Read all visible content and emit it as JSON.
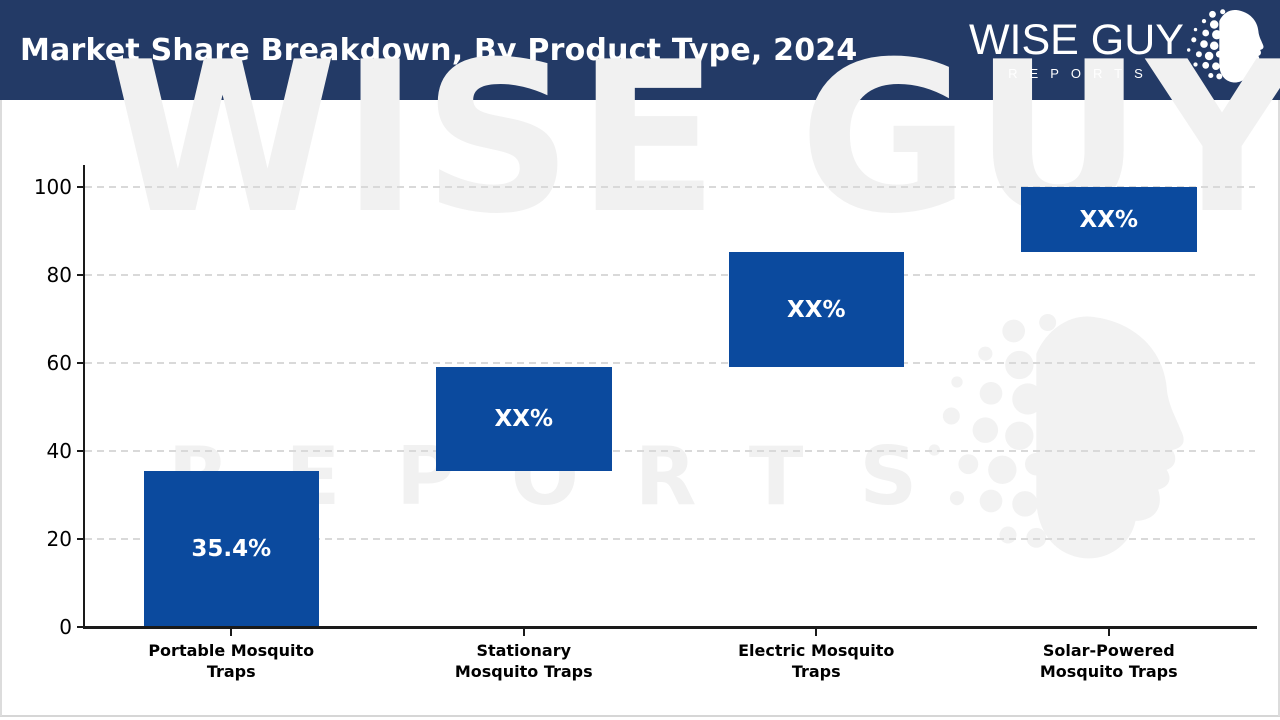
{
  "header": {
    "title": "Market Share Breakdown, By Product Type, 2024",
    "logo": {
      "brand": "WISE GUY",
      "sub": "REPORTS"
    }
  },
  "watermark": {
    "brand": "WISE GUY",
    "sub": "REPORTS"
  },
  "chart_data": {
    "type": "bar",
    "subtype": "waterfall",
    "title": "Market Share Breakdown, By Product Type, 2024",
    "categories": [
      [
        "Portable Mosquito",
        "Traps"
      ],
      [
        "Stationary",
        "Mosquito Traps"
      ],
      [
        "Electric Mosquito",
        "Traps"
      ],
      [
        "Solar-Powered",
        "Mosquito Traps"
      ]
    ],
    "segments": [
      {
        "category": "Portable Mosquito Traps",
        "start": 0,
        "end": 35.4,
        "label": "35.4%"
      },
      {
        "category": "Stationary Mosquito Traps",
        "start": 35.4,
        "end": 59.1,
        "label": "XX%"
      },
      {
        "category": "Electric Mosquito Traps",
        "start": 59.1,
        "end": 85.2,
        "label": "XX%"
      },
      {
        "category": "Solar-Powered Mosquito Traps",
        "start": 85.2,
        "end": 100,
        "label": "XX%"
      }
    ],
    "xlabel": "",
    "ylabel": "",
    "ylim": [
      0,
      100
    ],
    "yticks": [
      0,
      20,
      40,
      60,
      80,
      100
    ],
    "grid": "horizontal-dashed",
    "legend": "none",
    "colors": {
      "header_bg": "#233a66",
      "bar": "#0b4a9e",
      "bar_label": "#ffffff",
      "grid": "#d9d9d9",
      "axis": "#1a1a1a",
      "watermark": "#f1f1f1"
    }
  }
}
